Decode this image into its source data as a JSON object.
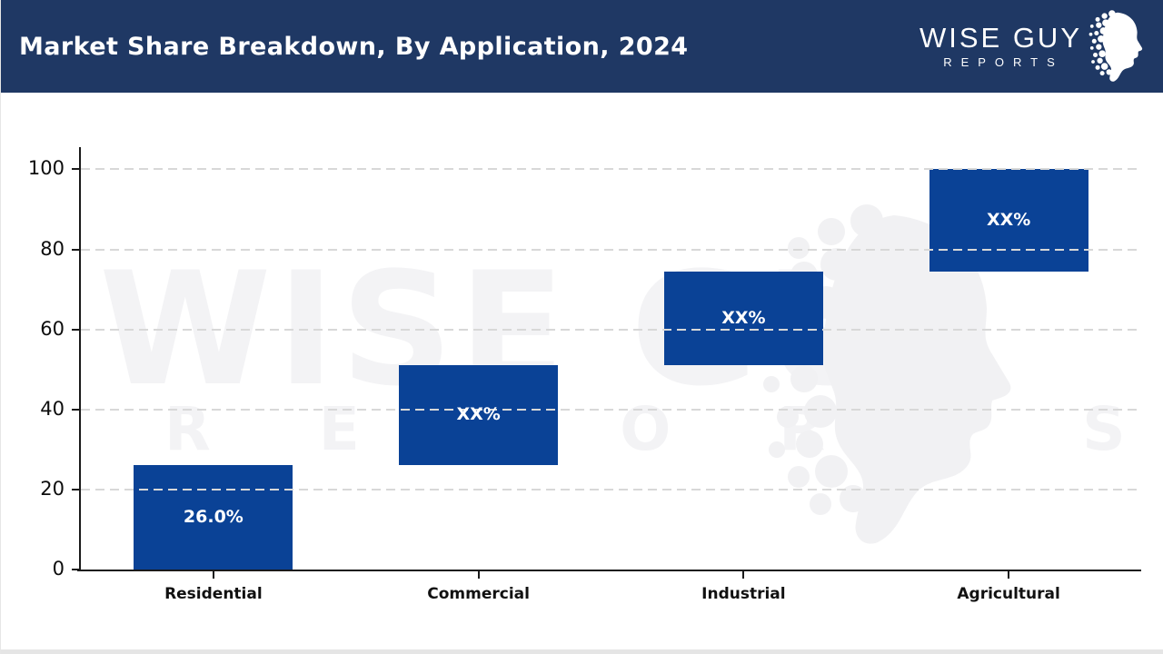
{
  "header": {
    "title": "Market Share Breakdown, By Application, 2024",
    "bg_color": "#1f3864",
    "logo": {
      "line1": "WISE GUY",
      "line2": "REPORTS",
      "face_icon": "dotted-profile-face"
    }
  },
  "watermark": {
    "line1": "WISE GU",
    "line2": "R E P O R T S",
    "color": "#f3f3f5"
  },
  "chart_data": {
    "type": "bar",
    "variant": "floating-segment waterfall (stacked market-share breakdown)",
    "title": "Market Share Breakdown, By Application, 2024",
    "categories": [
      "Residential",
      "Commercial",
      "Industrial",
      "Agricultural"
    ],
    "segments": [
      {
        "category": "Residential",
        "start": 0,
        "end": 26,
        "label": "26.0%"
      },
      {
        "category": "Commercial",
        "start": 26,
        "end": 51,
        "label": "XX%"
      },
      {
        "category": "Industrial",
        "start": 51,
        "end": 74.5,
        "label": "XX%"
      },
      {
        "category": "Agricultural",
        "start": 74.5,
        "end": 100,
        "label": "XX%"
      }
    ],
    "yticks": [
      0,
      20,
      40,
      60,
      80,
      100
    ],
    "ytick_labels": [
      "0",
      "20",
      "40",
      "60",
      "80",
      "100"
    ],
    "ylim": [
      0,
      106
    ],
    "xlabel": "",
    "ylabel": "",
    "legend": "none",
    "grid": "horizontal dashed, drawn over bars",
    "bar_color": "#0a4296",
    "bar_label_color": "#ffffff",
    "grid_color": "#d8d8d8",
    "axis_color": "#1a1a1a"
  }
}
